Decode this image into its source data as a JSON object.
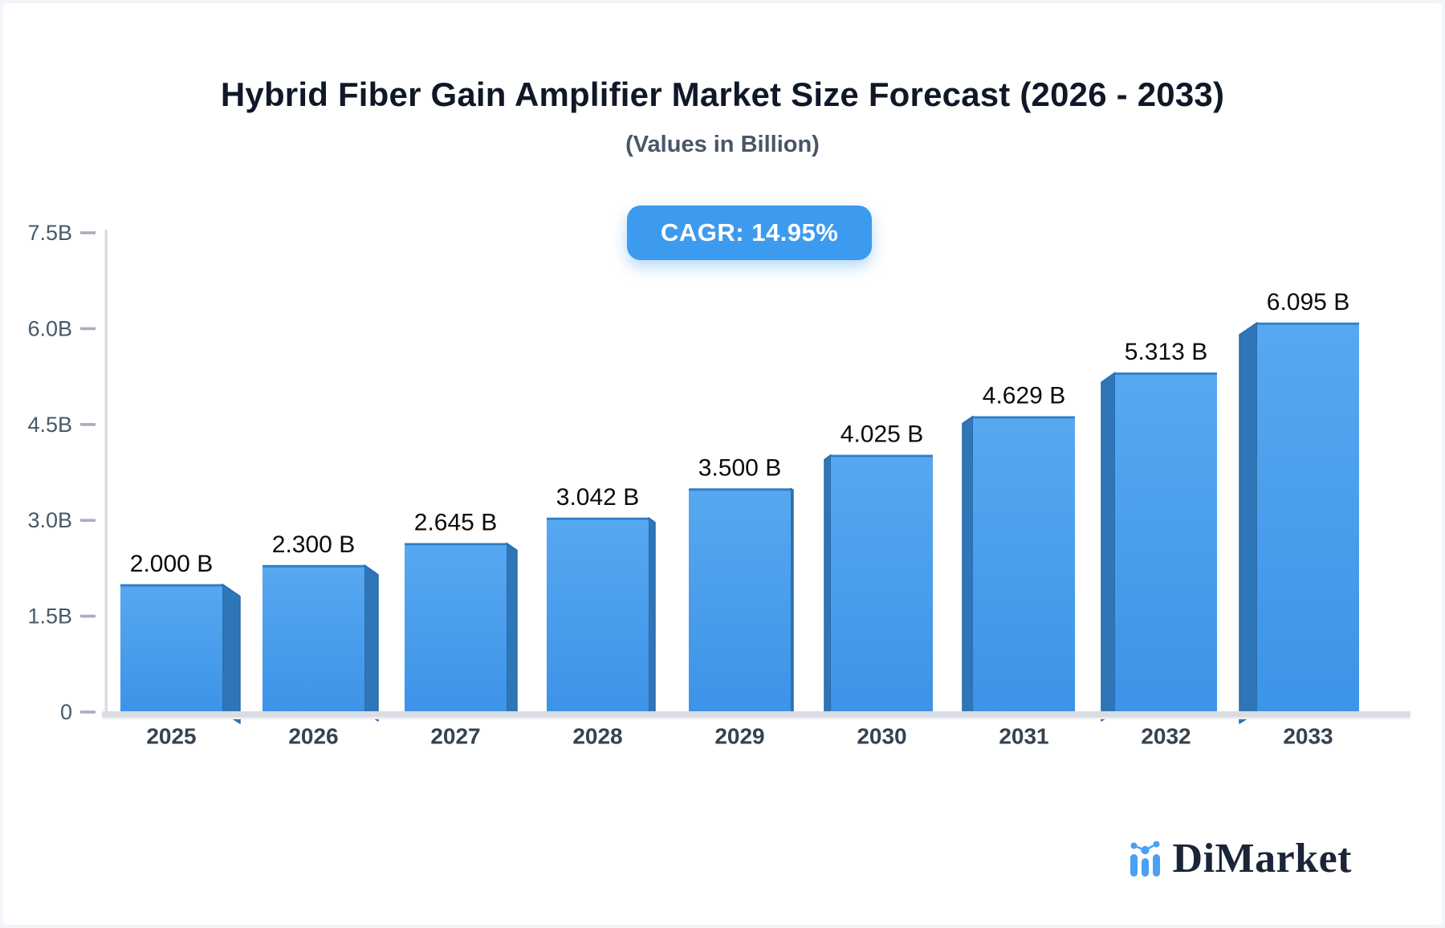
{
  "page": {
    "title": "Hybrid Fiber Gain Amplifier Market Size Forecast (2026 - 2033)",
    "subtitle": "(Values in Billion)",
    "cagr_badge": "CAGR: 14.95%"
  },
  "logo": {
    "text": "DiMarket"
  },
  "chart_data": {
    "type": "bar",
    "title": "Hybrid Fiber Gain Amplifier Market Size Forecast (2026 - 2033)",
    "subtitle": "(Values in Billion)",
    "cagr": "14.95%",
    "unit": "Billion",
    "categories": [
      "2025",
      "2026",
      "2027",
      "2028",
      "2029",
      "2030",
      "2031",
      "2032",
      "2033"
    ],
    "values": [
      2.0,
      2.3,
      2.645,
      3.042,
      3.5,
      4.025,
      4.629,
      5.313,
      6.095
    ],
    "value_labels": [
      "2.000 B",
      "2.300 B",
      "2.645 B",
      "3.042 B",
      "3.500 B",
      "4.025 B",
      "4.629 B",
      "5.313 B",
      "6.095 B"
    ],
    "ylim": [
      0,
      7.5
    ],
    "yticks": [
      {
        "value": 7.5,
        "label": "7.5B"
      },
      {
        "value": 6.0,
        "label": "6.0B"
      },
      {
        "value": 4.5,
        "label": "4.5B"
      },
      {
        "value": 3.0,
        "label": "3.0B"
      },
      {
        "value": 1.5,
        "label": "1.5B"
      },
      {
        "value": 0,
        "label": "0"
      }
    ],
    "grid": false,
    "legend": false,
    "bar_style": "3d",
    "colors": {
      "bar_front_top": "#57a8f0",
      "bar_front_bottom": "#3d93e8",
      "bar_side": "#2e76b8",
      "bar_side_stroke": "#2a6aa9",
      "bar_top_line": "#2f7fc6",
      "accent": "#3d9bef",
      "axis": "#d9dde3",
      "tick": "#a6afbc",
      "y_label": "#49586a",
      "x_label": "#36424f",
      "value_label": "#0b0b0b",
      "logo_blue": "#4aa0f5"
    }
  }
}
